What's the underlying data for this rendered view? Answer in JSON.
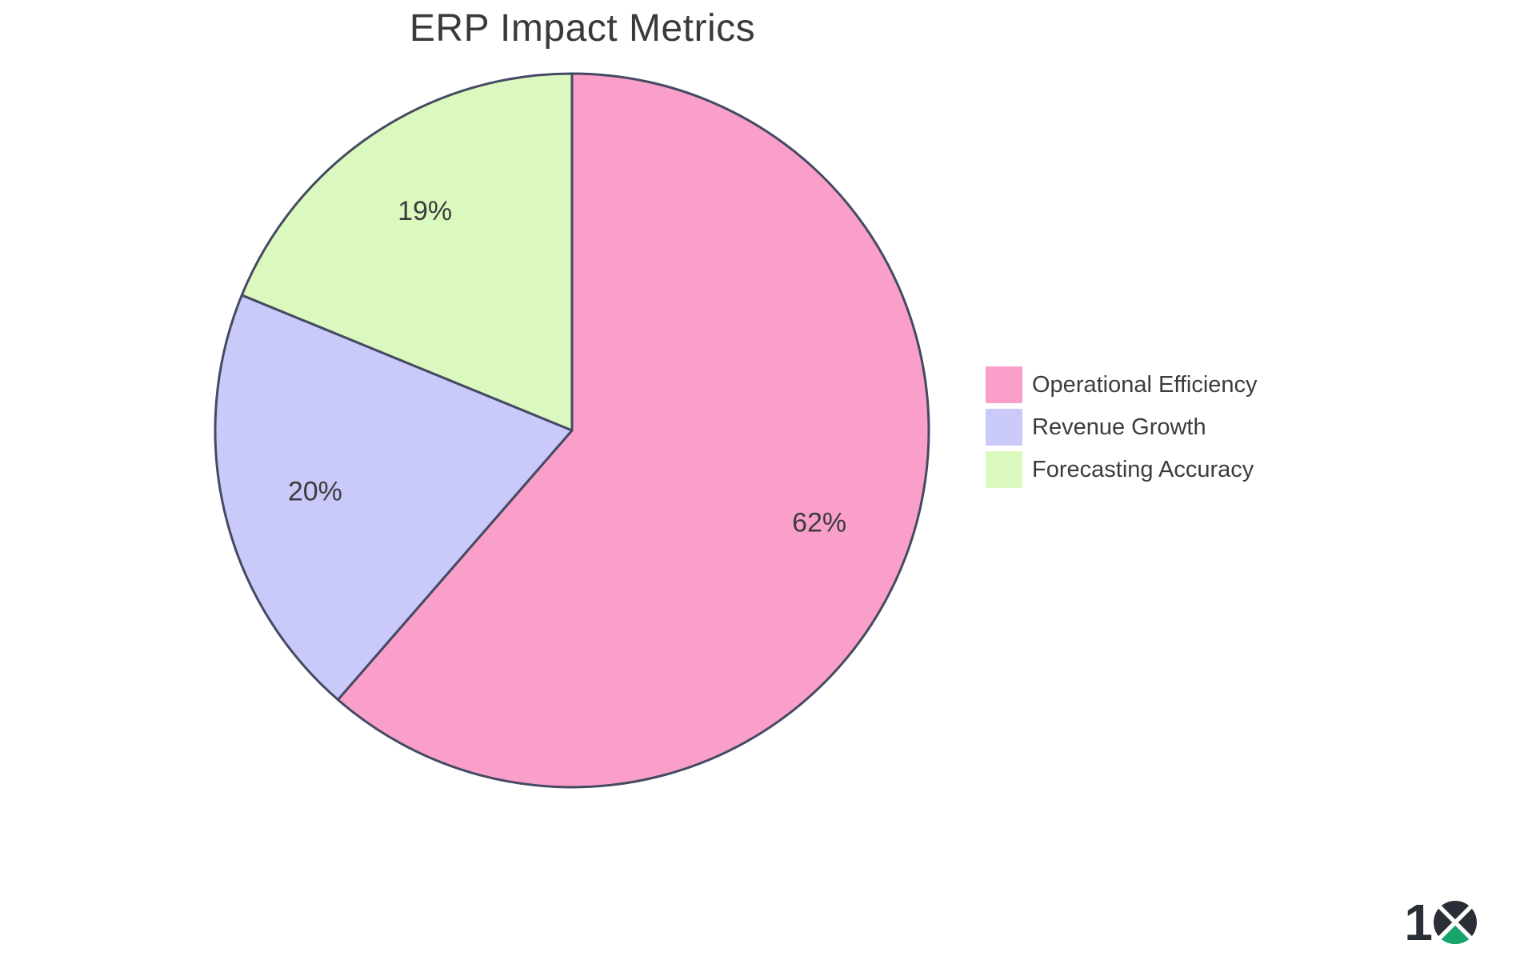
{
  "chart_data": {
    "type": "pie",
    "title": "ERP Impact Metrics",
    "legend_position": "right",
    "start_angle_deg": 0,
    "direction": "clockwise",
    "stroke_color": "#454a63",
    "stroke_width": 3,
    "label_color": "#3c3c3c",
    "slices": [
      {
        "id": "operational-efficiency",
        "label": "Operational Efficiency",
        "value": 62,
        "pct_label": "62%",
        "color": "#fa9fca"
      },
      {
        "id": "revenue-growth",
        "label": "Revenue Growth",
        "value": 20,
        "pct_label": "20%",
        "color": "#c9cafa"
      },
      {
        "id": "forecasting-accuracy",
        "label": "Forecasting Accuracy",
        "value": 19,
        "pct_label": "19%",
        "color": "#dbf9be"
      }
    ]
  },
  "logo": {
    "text": "1",
    "mark_dark": "#2a2e37",
    "mark_accent": "#17a56c"
  }
}
